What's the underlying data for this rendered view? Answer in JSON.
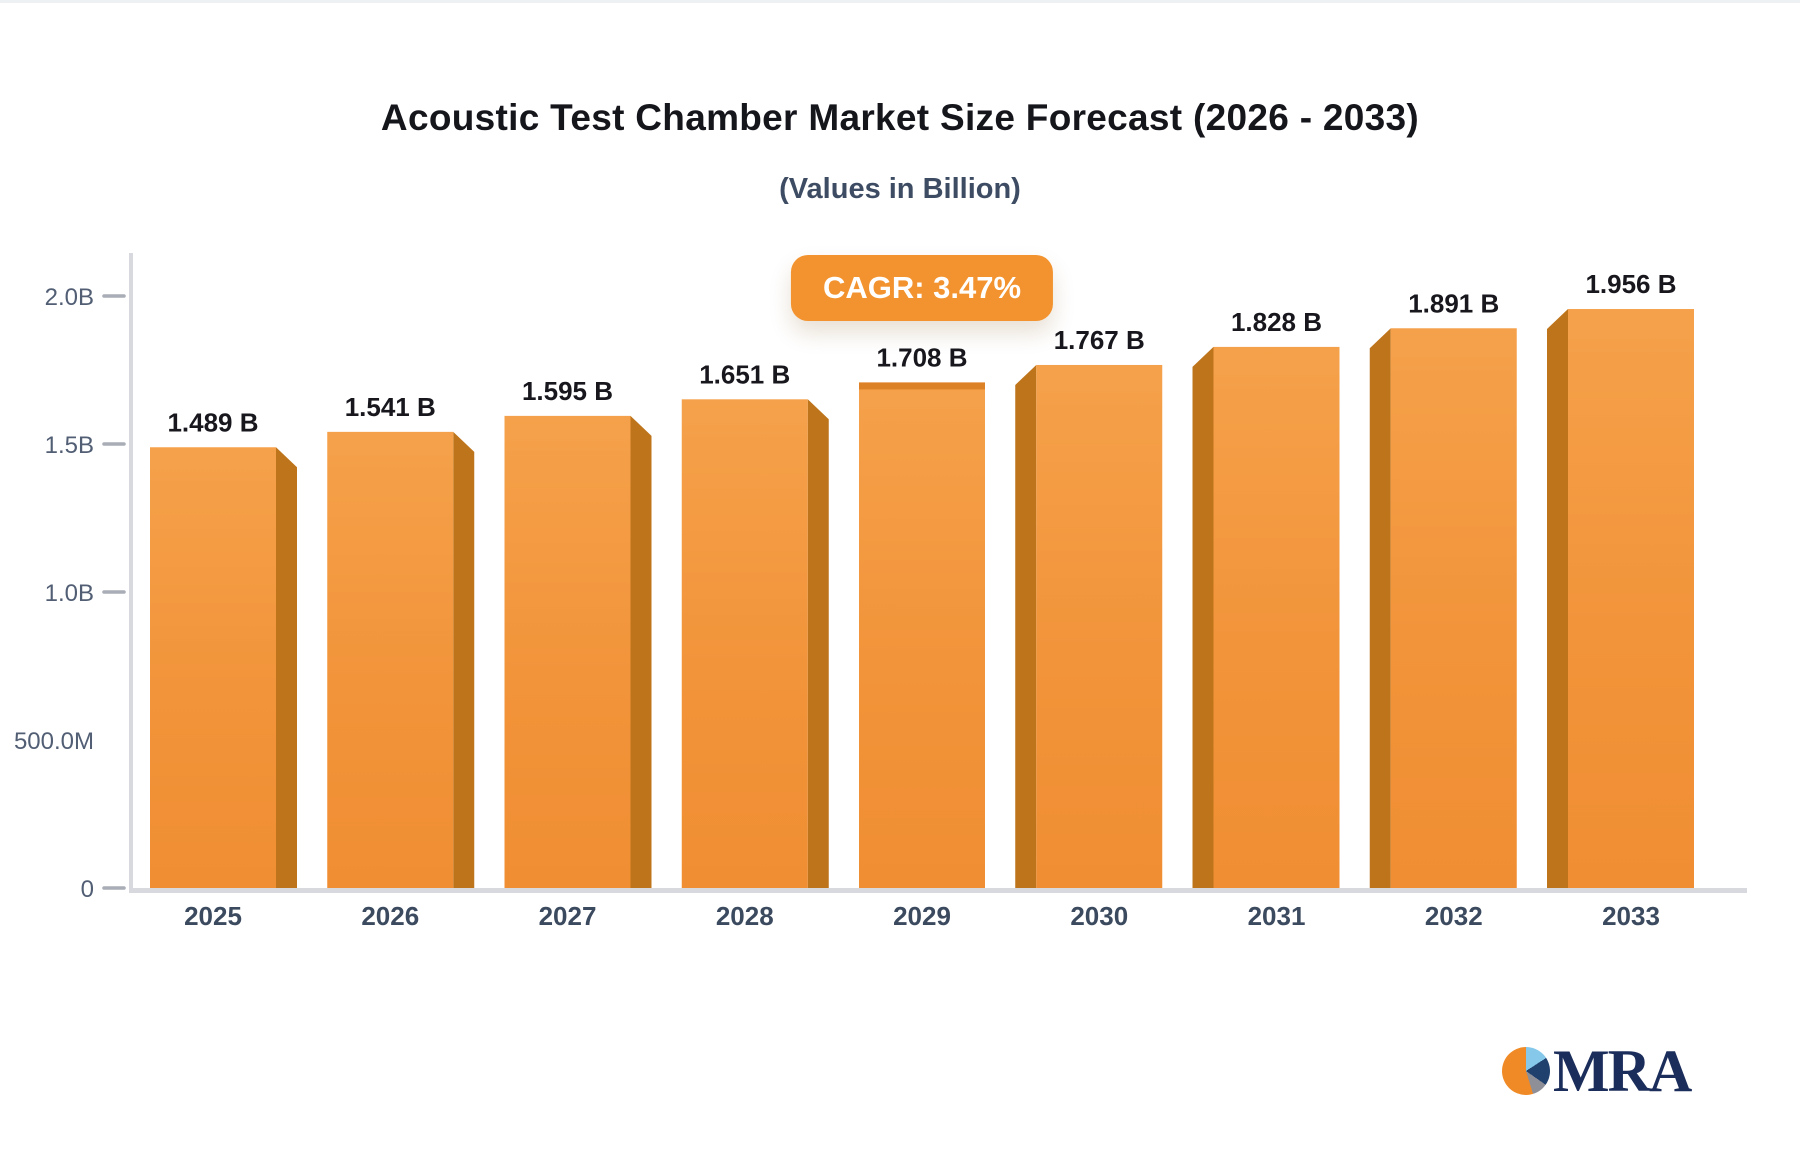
{
  "chart_data": {
    "type": "bar",
    "title": "Acoustic Test Chamber Market Size Forecast (2026 - 2033)",
    "subtitle": "(Values in Billion)",
    "annotation": "CAGR: 3.47%",
    "categories": [
      "2025",
      "2026",
      "2027",
      "2028",
      "2029",
      "2030",
      "2031",
      "2032",
      "2033"
    ],
    "values": [
      1.489,
      1.541,
      1.595,
      1.651,
      1.708,
      1.767,
      1.828,
      1.891,
      1.956
    ],
    "value_labels": [
      "1.489 B",
      "1.541 B",
      "1.595 B",
      "1.651 B",
      "1.708 B",
      "1.767 B",
      "1.828 B",
      "1.891 B",
      "1.956 B"
    ],
    "unit": "B",
    "ylim": [
      0,
      2.14
    ],
    "yticks": [
      {
        "label": "0",
        "value": 0,
        "dash": true
      },
      {
        "label": "500.0M",
        "value": 0.5,
        "dash": false
      },
      {
        "label": "1.0B",
        "value": 1.0,
        "dash": true
      },
      {
        "label": "1.5B",
        "value": 1.5,
        "dash": true
      },
      {
        "label": "2.0B",
        "value": 2.0,
        "dash": true
      }
    ],
    "grid": false,
    "legend": false,
    "colors": {
      "bar_face_top": "#F5A14B",
      "bar_face_mid": "#F2943A",
      "bar_face_bottom": "#F08E33",
      "bar_side": "#BE741B",
      "bar_top_edge": "#DD8127",
      "axis_line": "#D7D9DE",
      "tick_dash": "#A9ADB6",
      "tick_label": "#515E74",
      "x_label": "#3B4A5E",
      "value_label": "#17171D",
      "title": "#15151C",
      "subtitle": "#3D4C63",
      "badge_bg": "#F3932F",
      "badge_text": "#FFFFFF"
    }
  },
  "logo": {
    "text": "MRA",
    "text_color": "#1B2D5B",
    "pie_slices": [
      {
        "name": "light-blue",
        "color": "#85C8EA",
        "from": 0,
        "to": 57
      },
      {
        "name": "navy",
        "color": "#20406E",
        "from": 57,
        "to": 125
      },
      {
        "name": "gray",
        "color": "#8F8F97",
        "from": 125,
        "to": 163
      },
      {
        "name": "orange",
        "color": "#F08A26",
        "from": 163,
        "to": 360
      }
    ]
  }
}
